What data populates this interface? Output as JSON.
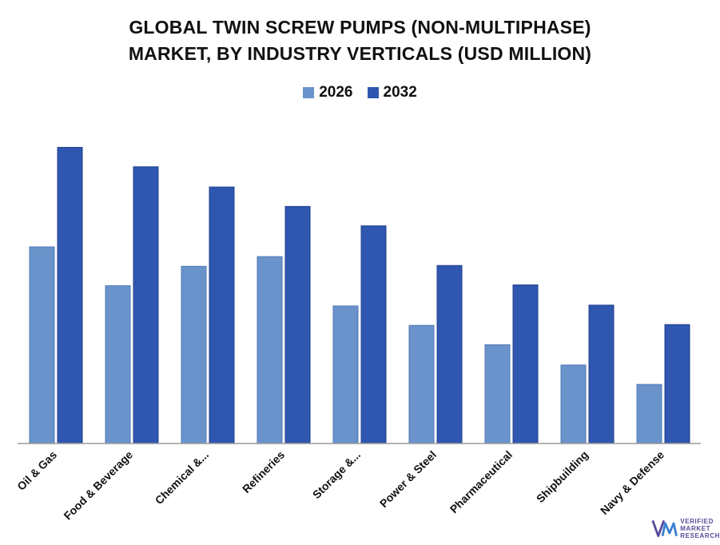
{
  "chart_data": {
    "type": "bar",
    "title": [
      "GLOBAL TWIN SCREW PUMPS (NON-MULTIPHASE)",
      "MARKET, BY INDUSTRY VERTICALS  (USD MILLION)"
    ],
    "categories": [
      "Oil & Gas",
      "Food & Beverage",
      "Chemical &...",
      "Refineries",
      "Storage &...",
      "Power & Steel",
      "Pharmaceutical",
      "Shipbuilding",
      "Navy & Defense"
    ],
    "series": [
      {
        "name": "2026",
        "color": "#6a93cb",
        "values": [
          243,
          195,
          219,
          231,
          170,
          146,
          122,
          97,
          73
        ]
      },
      {
        "name": "2032",
        "color": "#2f57b0",
        "values": [
          366,
          342,
          317,
          293,
          269,
          220,
          196,
          171,
          147
        ]
      }
    ],
    "ylim": [
      0,
      400
    ],
    "legend_position": "top-center",
    "grid": false
  },
  "logo": {
    "icon": "vmr-logo-icon",
    "lines": [
      "VERIFIED",
      "MARKET",
      "RESEARCH"
    ],
    "color": "#5a4a9a"
  }
}
